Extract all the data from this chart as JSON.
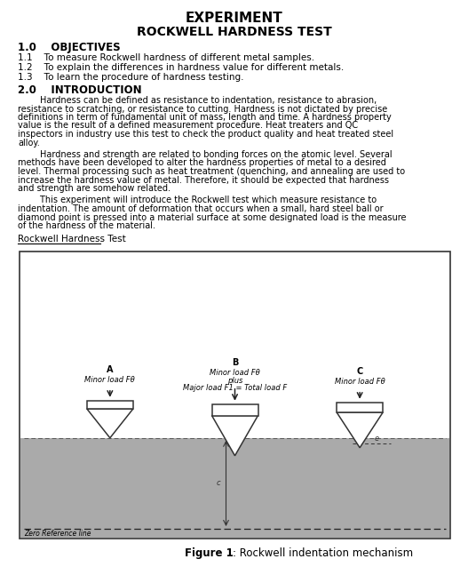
{
  "title": "EXPERIMENT",
  "subtitle": "ROCKWELL HARDNESS TEST",
  "section1_header": "1.0    OBJECTIVES",
  "objectives": [
    "1.1    To measure Rockwell hardness of different metal samples.",
    "1.2    To explain the differences in hardness value for different metals.",
    "1.3    To learn the procedure of hardness testing."
  ],
  "section2_header": "2.0    INTRODUCTION",
  "para1_lines": [
    "        Hardness can be defined as resistance to indentation, resistance to abrasion,",
    "resistance to scratching, or resistance to cutting. Hardness is not dictated by precise",
    "definitions in term of fundamental unit of mass, length and time. A hardness property",
    "value is the result of a defined measurement procedure. Heat treaters and QC",
    "inspectors in industry use this test to check the product quality and heat treated steel",
    "alloy."
  ],
  "para2_lines": [
    "        Hardness and strength are related to bonding forces on the atomic level. Several",
    "methods have been developed to alter the hardness properties of metal to a desired",
    "level. Thermal processing such as heat treatment (quenching, and annealing are used to",
    "increase the hardness value of metal. Therefore, it should be expected that hardness",
    "and strength are somehow related."
  ],
  "para3_lines": [
    "        This experiment will introduce the Rockwell test which measure resistance to",
    "indentation. The amount of deformation that occurs when a small, hard steel ball or",
    "diamond point is pressed into a material surface at some designated load is the measure",
    "of the hardness of the material."
  ],
  "rockwell_link": "Rockwell Hardness Test",
  "figure_caption_bold": "Figure 1",
  "figure_caption_rest": ": Rockwell indentation mechanism",
  "bg_color": "#ffffff",
  "text_color": "#000000",
  "mat_color": "#aaaaaa",
  "border_color": "#333333"
}
